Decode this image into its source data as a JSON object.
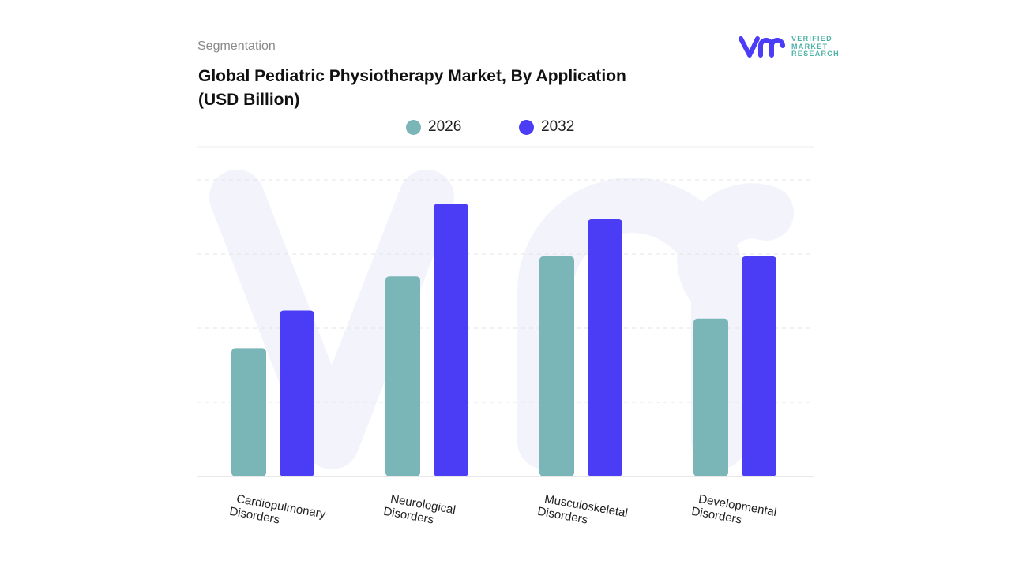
{
  "header": {
    "segment_label": "Segmentation",
    "title_line1": "Global Pediatric Physiotherapy Market, By Application",
    "title_line2": "(USD Billion)"
  },
  "logo": {
    "brand": "VERIFIED MARKET RESEARCH",
    "line1": "VERIFIED",
    "line2": "MARKET",
    "line3": "RESEARCH",
    "color_primary": "#4b3cf5",
    "color_secondary": "#4bb3a6"
  },
  "chart_data": {
    "type": "bar",
    "title": "Global Pediatric Physiotherapy Market, By Application (USD Billion)",
    "categories": [
      "Cardiopulmonary Disorders",
      "Neurological Disorders",
      "Musculoskeletal Disorders",
      "Developmental Disorders"
    ],
    "category_lines": [
      [
        "Cardiopulmonary",
        "Disorders"
      ],
      [
        "Neurological",
        "Disorders"
      ],
      [
        "Musculoskeletal",
        "Disorders"
      ],
      [
        "Developmental",
        "Disorders"
      ]
    ],
    "series": [
      {
        "name": "2026",
        "color": "#7ab5b8",
        "values": [
          1.73,
          2.7,
          2.97,
          2.13
        ]
      },
      {
        "name": "2032",
        "color": "#4b3cf5",
        "values": [
          2.24,
          3.68,
          3.47,
          2.97
        ]
      }
    ],
    "ylim": [
      0,
      4
    ],
    "grid": true,
    "legend_position": "top-center",
    "xlabel": "",
    "ylabel": ""
  }
}
